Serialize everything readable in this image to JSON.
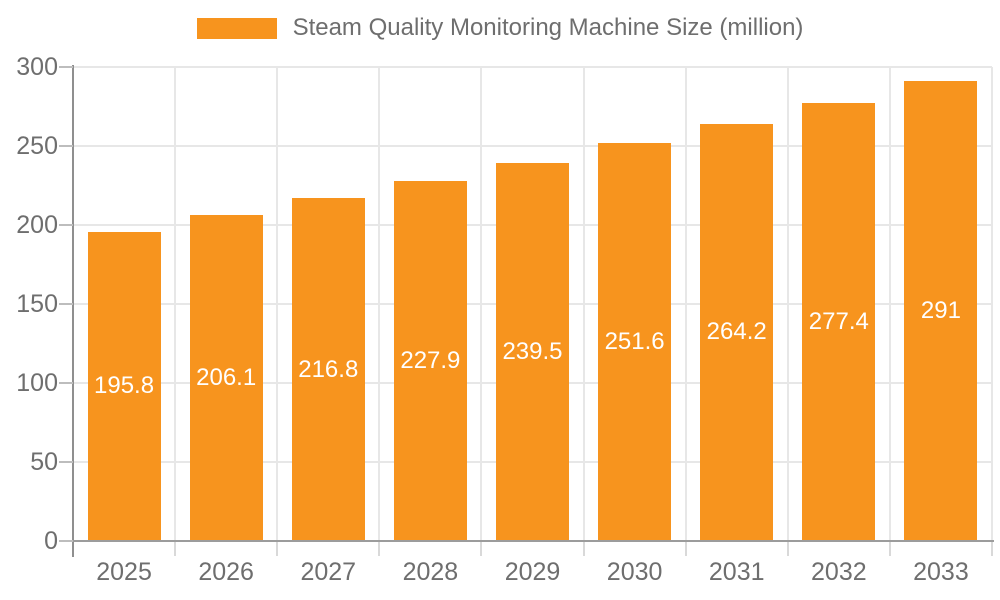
{
  "legend": {
    "label": "Steam Quality Monitoring Machine Size (million)",
    "swatch_color": "#F7941E"
  },
  "chart_data": {
    "type": "bar",
    "title": "Steam Quality Monitoring Machine Size (million)",
    "categories": [
      "2025",
      "2026",
      "2027",
      "2028",
      "2029",
      "2030",
      "2031",
      "2032",
      "2033"
    ],
    "values": [
      195.8,
      206.1,
      216.8,
      227.9,
      239.5,
      251.6,
      264.2,
      277.4,
      291
    ],
    "value_labels": [
      "195.8",
      "206.1",
      "216.8",
      "227.9",
      "239.5",
      "251.6",
      "264.2",
      "277.4",
      "291"
    ],
    "xlabel": "",
    "ylabel": "",
    "ylim": [
      0,
      300
    ],
    "yticks": [
      0,
      50,
      100,
      150,
      200,
      250,
      300
    ],
    "grid": "horizontal-and-vertical",
    "legend_position": "top-center",
    "colors": {
      "bar": "#F7941E",
      "value_label_text": "#FFFFFF",
      "axis_line": "#8F8F8F",
      "gridline": "#E7E7E7",
      "tick_label_text": "#6E6E6E",
      "legend_text": "#6E6E6E",
      "background": "#FFFFFF"
    }
  }
}
